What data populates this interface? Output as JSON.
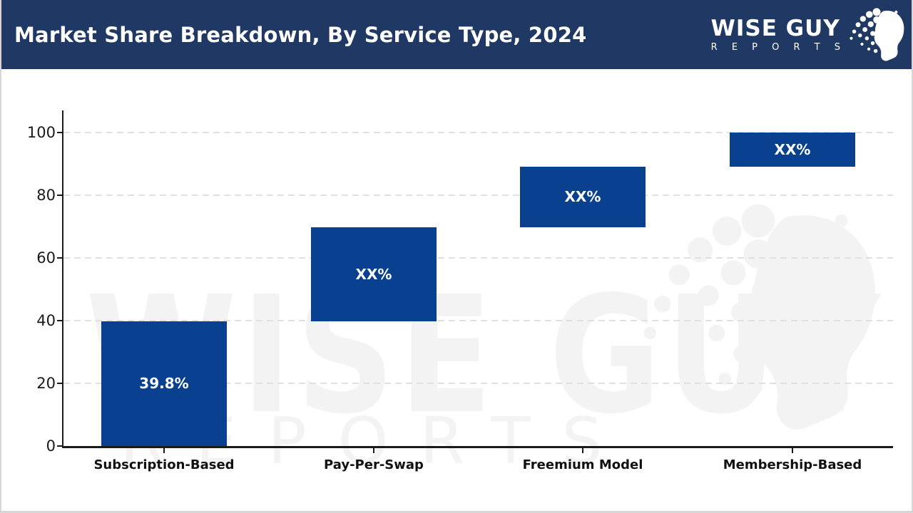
{
  "header": {
    "title": "Market Share Breakdown, By Service Type, 2024",
    "logo": {
      "line1": "WISE GUY",
      "line2": "R E P O R T S"
    }
  },
  "watermark": {
    "line1": "WISE GUY",
    "line2": "REPORTS"
  },
  "colors": {
    "header_bg": "#1f3864",
    "bar": "#09408f",
    "grid": "#e0e0e0",
    "axis": "#1a1a1a",
    "watermark": "#f3f3f3"
  },
  "chart_data": {
    "type": "bar",
    "subtype": "waterfall",
    "title": "Market Share Breakdown, By Service Type, 2024",
    "categories": [
      "Subscription-Based",
      "Pay-Per-Swap",
      "Freemium Model",
      "Membership-Based"
    ],
    "segments": [
      {
        "category": "Subscription-Based",
        "start": 0,
        "end": 39.8,
        "value": 39.8,
        "label": "39.8%"
      },
      {
        "category": "Pay-Per-Swap",
        "start": 39.8,
        "end": 69.8,
        "value": 30.0,
        "label": "XX%"
      },
      {
        "category": "Freemium Model",
        "start": 69.8,
        "end": 89.2,
        "value": 19.4,
        "label": "XX%"
      },
      {
        "category": "Membership-Based",
        "start": 89.2,
        "end": 100,
        "value": 10.8,
        "label": "XX%"
      }
    ],
    "yticks": [
      0,
      20,
      40,
      60,
      80,
      100
    ],
    "ylim": [
      0,
      107
    ],
    "xlabel": "",
    "ylabel": "",
    "grid": "horizontal dashed",
    "legend": "none"
  }
}
